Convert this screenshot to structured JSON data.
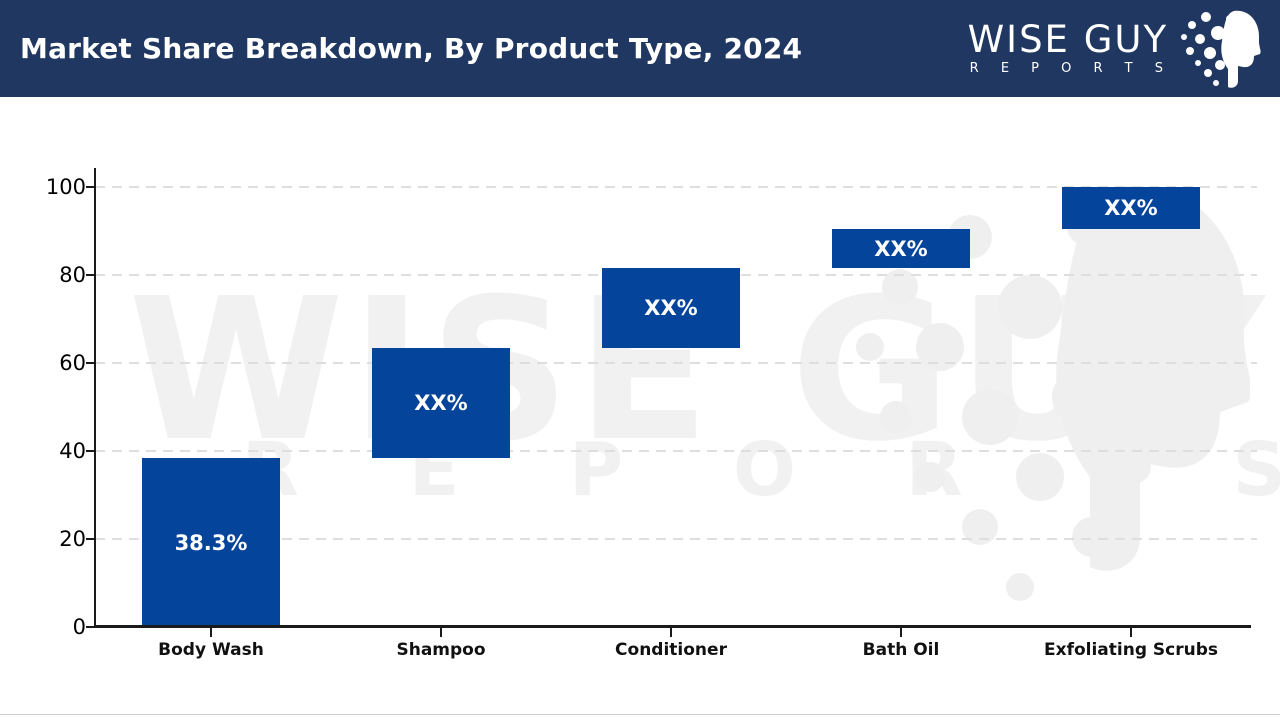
{
  "header": {
    "title": "Market Share Breakdown, By Product Type, 2024",
    "bg_color": "#1f3761",
    "logo": {
      "line1": "WISE GUY",
      "line2": "R E P O R T S"
    }
  },
  "watermark": {
    "line1": "WISE GUY",
    "line2": "R E P O R T S"
  },
  "chart_data": {
    "type": "bar",
    "subtype": "waterfall-stacked",
    "title": "Market Share Breakdown, By Product Type, 2024",
    "xlabel": "",
    "ylabel": "",
    "ylim": [
      0,
      100
    ],
    "yticks": [
      0,
      20,
      40,
      60,
      80,
      100
    ],
    "grid": "horizontal dashed",
    "legend": "none",
    "categories": [
      "Body Wash",
      "Shampoo",
      "Conditioner",
      "Bath Oil",
      "Exfoliating Scrubs"
    ],
    "segments": [
      {
        "category": "Body Wash",
        "start": 0,
        "end": 38.3,
        "label": "38.3%"
      },
      {
        "category": "Shampoo",
        "start": 38.3,
        "end": 63.5,
        "label": "XX%"
      },
      {
        "category": "Conditioner",
        "start": 63.5,
        "end": 81.5,
        "label": "XX%"
      },
      {
        "category": "Bath Oil",
        "start": 81.5,
        "end": 90.5,
        "label": "XX%"
      },
      {
        "category": "Exfoliating Scrubs",
        "start": 90.5,
        "end": 100,
        "label": "XX%"
      }
    ],
    "bar_color": "#05449b",
    "bar_label_color": "#ffffff",
    "gridline_color": "#dedede",
    "axis_color": "#1a1a1a"
  }
}
